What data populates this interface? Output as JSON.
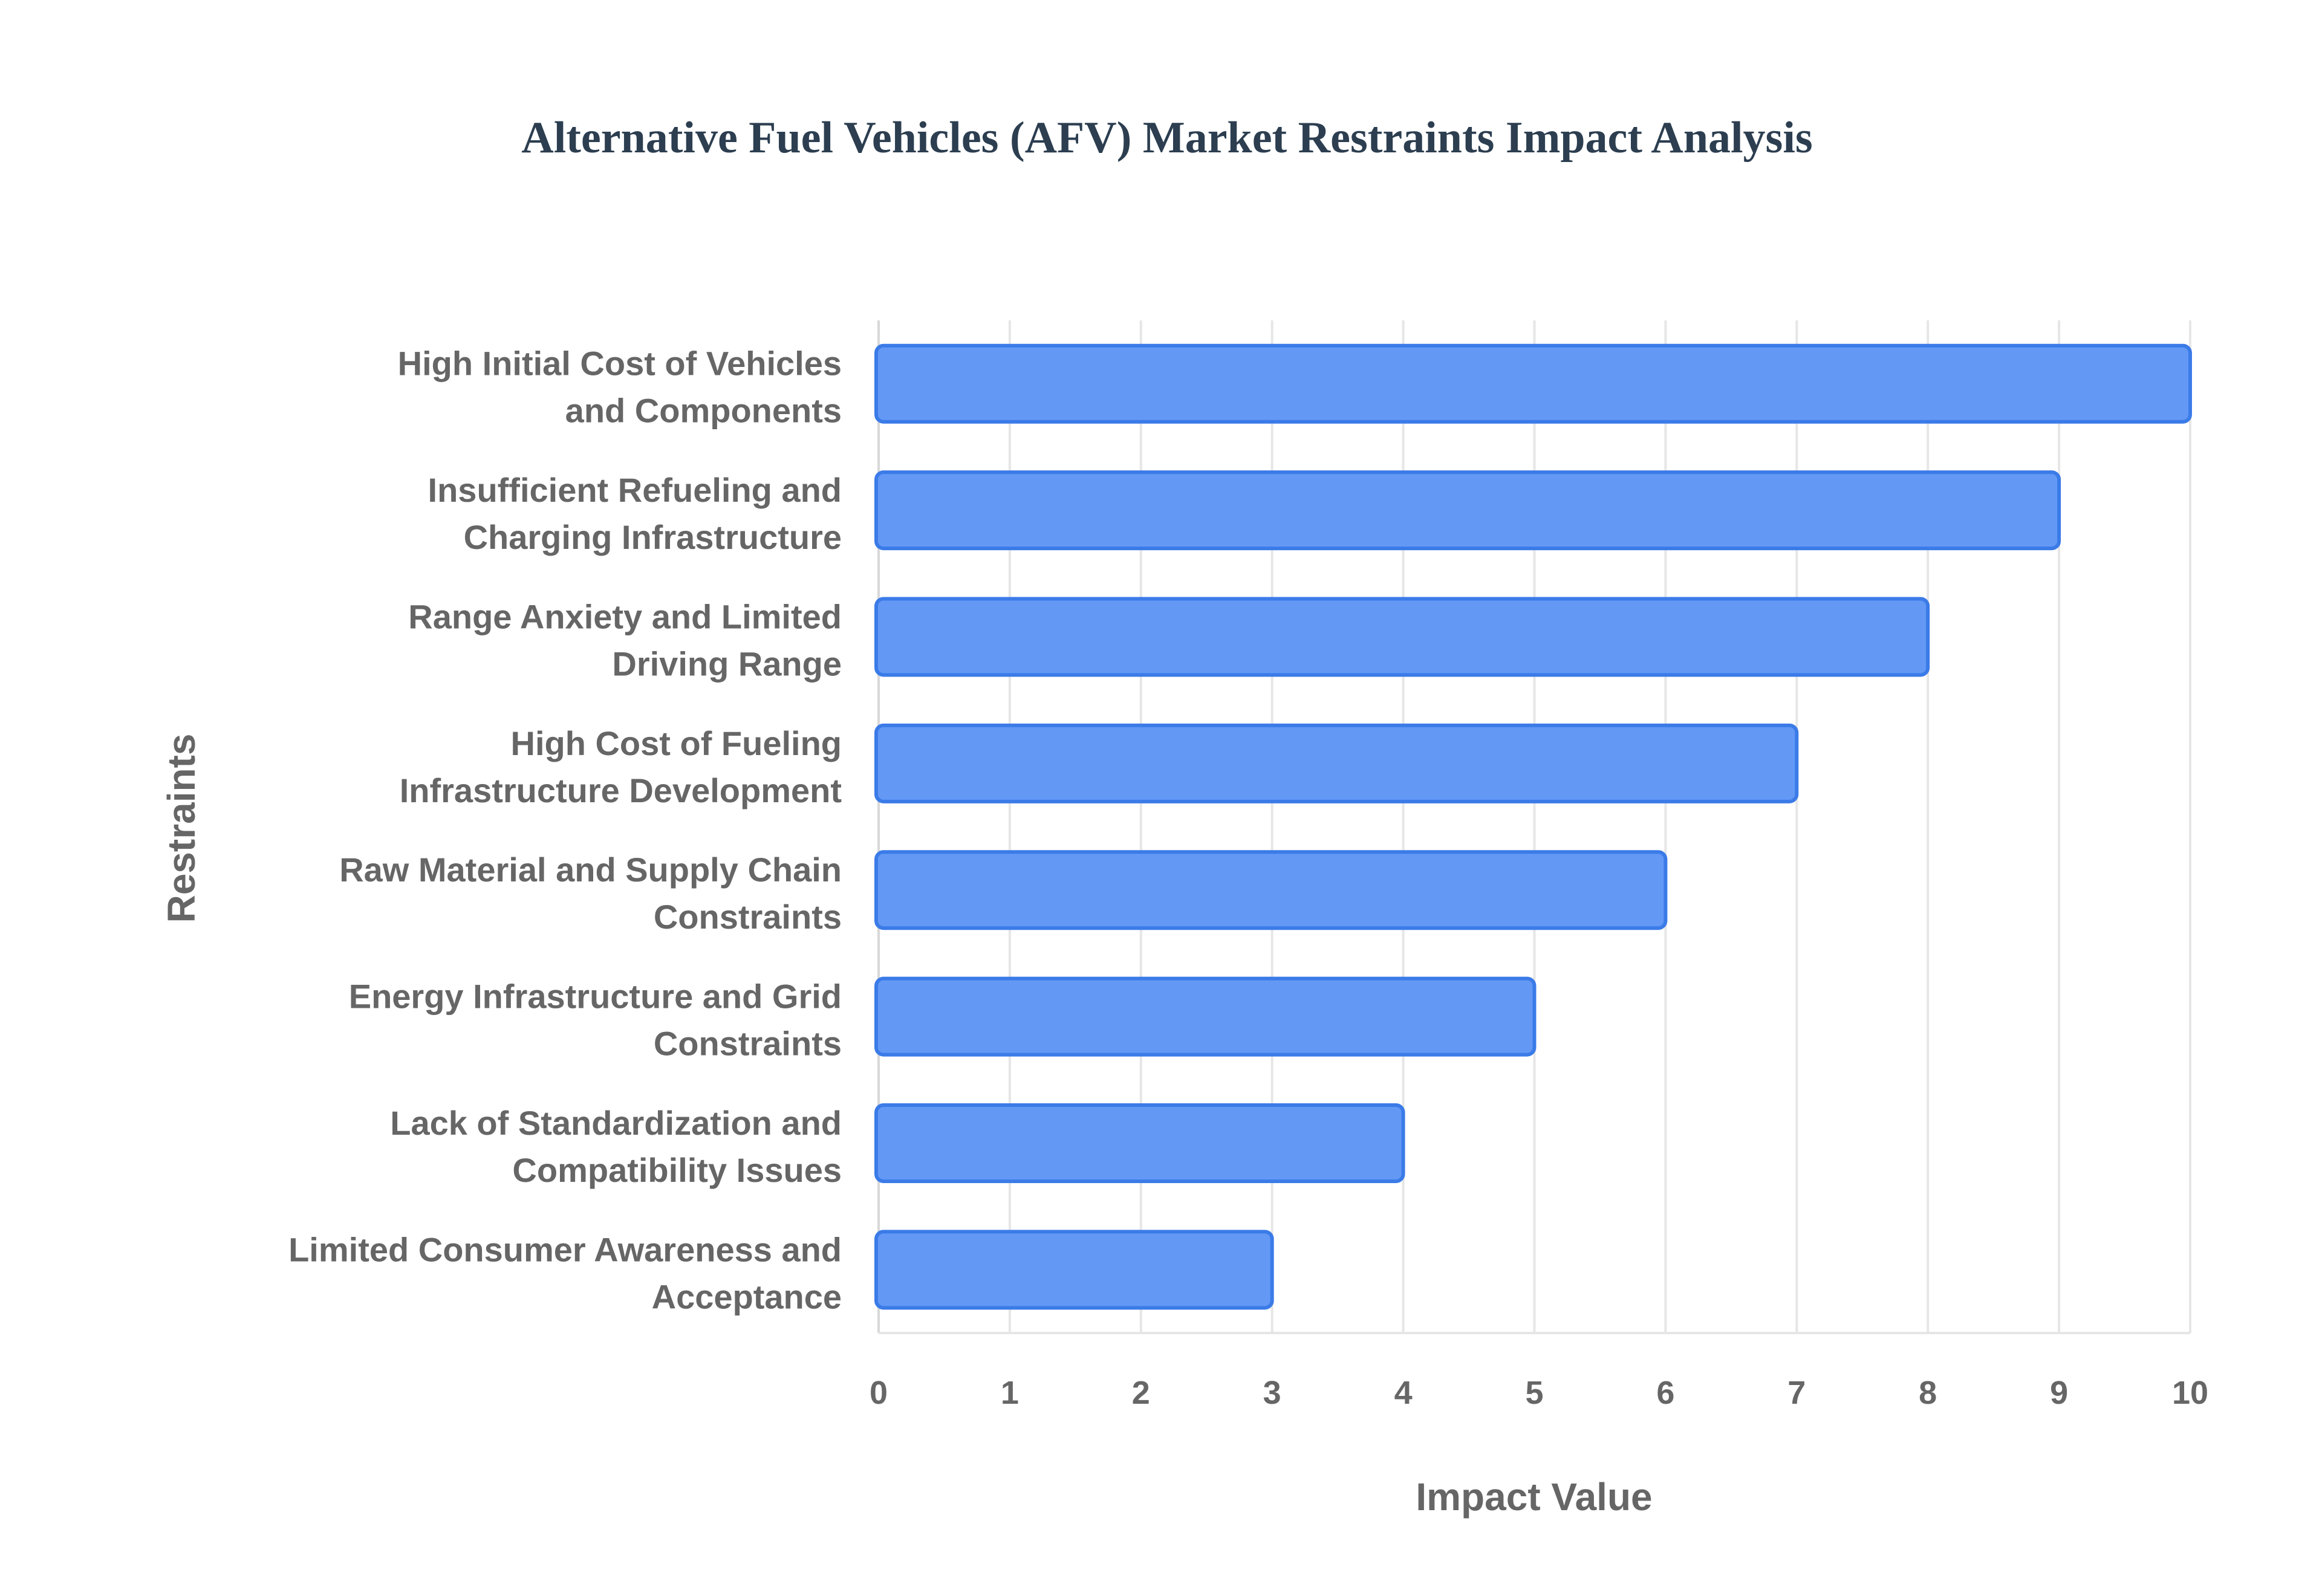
{
  "chart_data": {
    "type": "bar",
    "orientation": "horizontal",
    "title": "Alternative Fuel Vehicles (AFV) Market Restraints Impact Analysis",
    "xlabel": "Impact Value",
    "ylabel": "Restraints",
    "xlim": [
      0,
      10
    ],
    "xticks": [
      "0",
      "1",
      "2",
      "3",
      "4",
      "5",
      "6",
      "7",
      "8",
      "9",
      "10"
    ],
    "grid": true,
    "categories": [
      [
        "High Initial Cost of Vehicles",
        "and Components"
      ],
      [
        "Insufficient Refueling and",
        "Charging Infrastructure"
      ],
      [
        "Range Anxiety and Limited",
        "Driving Range"
      ],
      [
        "High Cost of Fueling",
        "Infrastructure Development"
      ],
      [
        "Raw Material and Supply Chain",
        "Constraints"
      ],
      [
        "Energy Infrastructure and Grid",
        "Constraints"
      ],
      [
        "Lack of Standardization and",
        "Compatibility Issues"
      ],
      [
        "Limited Consumer Awareness and",
        "Acceptance"
      ]
    ],
    "values": [
      10,
      9,
      8,
      7,
      6,
      5,
      4,
      3
    ],
    "colors": {
      "bar_fill": "#6399f5",
      "bar_border": "#3b7be8",
      "title": "#2c3e50",
      "text": "#666666",
      "grid": "#e6e6e6"
    }
  }
}
